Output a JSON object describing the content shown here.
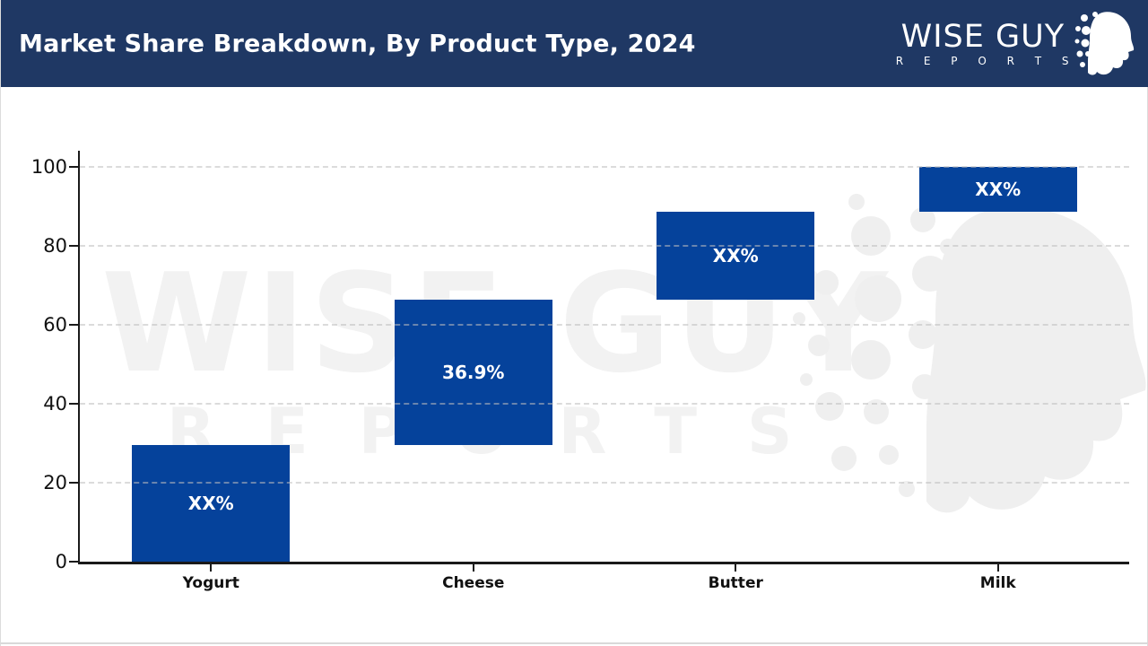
{
  "header": {
    "title": "Market Share Breakdown, By Product Type, 2024",
    "bg_color": "#1f3864",
    "logo": {
      "line1": "WISE GUY",
      "line2": "R E P O R T S"
    }
  },
  "watermark": {
    "line1": "WISE GUY",
    "line2": "REPORTS"
  },
  "chart_data": {
    "type": "bar",
    "subtype": "waterfall",
    "title": "Market Share Breakdown, By Product Type, 2024",
    "categories": [
      "Yogurt",
      "Cheese",
      "Butter",
      "Milk"
    ],
    "series": [
      {
        "name": "Market Share",
        "starts": [
          0,
          29.5,
          66.4,
          88.6
        ],
        "values": [
          29.5,
          36.9,
          22.2,
          11.4
        ]
      }
    ],
    "bar_labels": [
      "XX%",
      "36.9%",
      "XX%",
      "XX%"
    ],
    "yticks": [
      0,
      20,
      40,
      60,
      80,
      100
    ],
    "ylim": [
      0,
      104
    ],
    "xlabel": "",
    "ylabel": "",
    "grid": "horizontal-dashed",
    "legend": "none",
    "bar_color": "#05429b",
    "bar_label_color": "#ffffff"
  }
}
